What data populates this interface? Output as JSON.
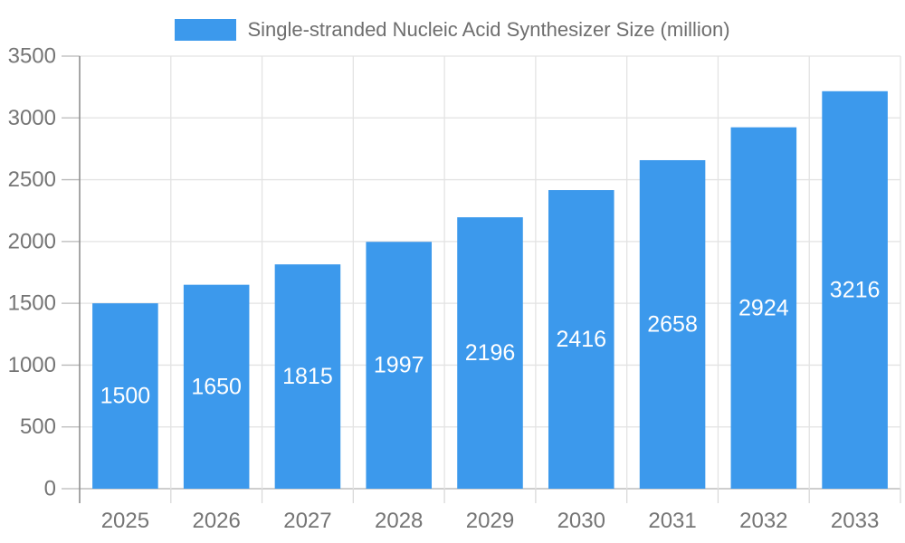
{
  "legend": {
    "position": "top-center",
    "label": "Single-stranded Nucleic Acid Synthesizer Size (million)"
  },
  "chart_data": {
    "type": "bar",
    "title": "Single-stranded Nucleic Acid Synthesizer Size (million)",
    "series_name": "Single-stranded Nucleic Acid Synthesizer Size (million)",
    "categories": [
      "2025",
      "2026",
      "2027",
      "2028",
      "2029",
      "2030",
      "2031",
      "2032",
      "2033"
    ],
    "values": [
      1500,
      1650,
      1815,
      1997,
      2196,
      2416,
      2658,
      2924,
      3216
    ],
    "value_labels": [
      "1500",
      "1650",
      "1815",
      "1997",
      "2196",
      "2416",
      "2658",
      "2924",
      "3216"
    ],
    "xlabel": "",
    "ylabel": "",
    "ylim": [
      0,
      3500
    ],
    "ytick_step": 500,
    "yticks": [
      0,
      500,
      1000,
      1500,
      2000,
      2500,
      3000,
      3500
    ],
    "grid": true,
    "legend_position": "top",
    "value_label_position": "inside-center"
  },
  "colors": {
    "bar": "#3C99EC",
    "value_label": "#ffffff",
    "axis_text": "#757575",
    "legend_text": "#6e6e6e",
    "grid_line": "#e3e3e3",
    "baseline": "#b1b1b1",
    "y_axis_line": "#8f8f8f",
    "tick": "#b9b9b9",
    "x_tick": "#d9d9d9",
    "background": "#ffffff"
  }
}
